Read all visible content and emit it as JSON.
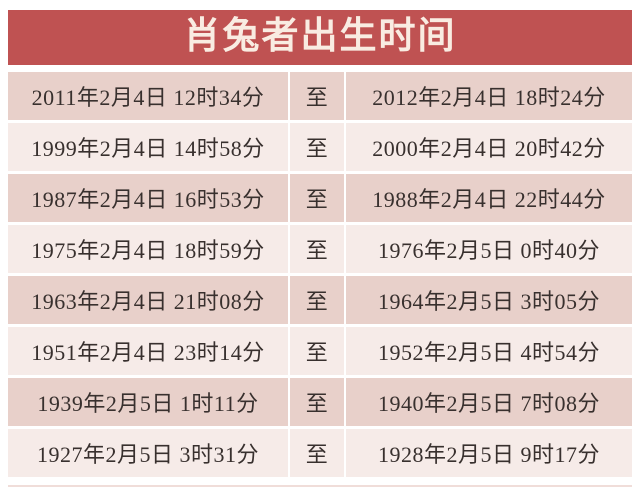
{
  "header": {
    "title": "肖兔者出生时间"
  },
  "table": {
    "separator_label": "至",
    "rows": [
      {
        "start": "2011年2月4日 12时34分",
        "end": "2012年2月4日 18时24分"
      },
      {
        "start": "1999年2月4日 14时58分",
        "end": "2000年2月4日 20时42分"
      },
      {
        "start": "1987年2月4日 16时53分",
        "end": "1988年2月4日 22时44分"
      },
      {
        "start": "1975年2月4日 18时59分",
        "end": "1976年2月5日 0时40分"
      },
      {
        "start": "1963年2月4日 21时08分",
        "end": "1964年2月5日 3时05分"
      },
      {
        "start": "1951年2月4日 23时14分",
        "end": "1952年2月5日 4时54分"
      },
      {
        "start": "1939年2月5日 1时11分",
        "end": "1940年2月5日 7时08分"
      },
      {
        "start": "1927年2月5日 3时31分",
        "end": "1928年2月5日 9时17分"
      }
    ]
  },
  "colors": {
    "header_bg": "#bf5252",
    "header_text": "#f9ece2",
    "row_dark": "#e8d0ca",
    "row_light": "#f6ebe8",
    "text": "#38302e",
    "page_bg": "#ffffff"
  }
}
